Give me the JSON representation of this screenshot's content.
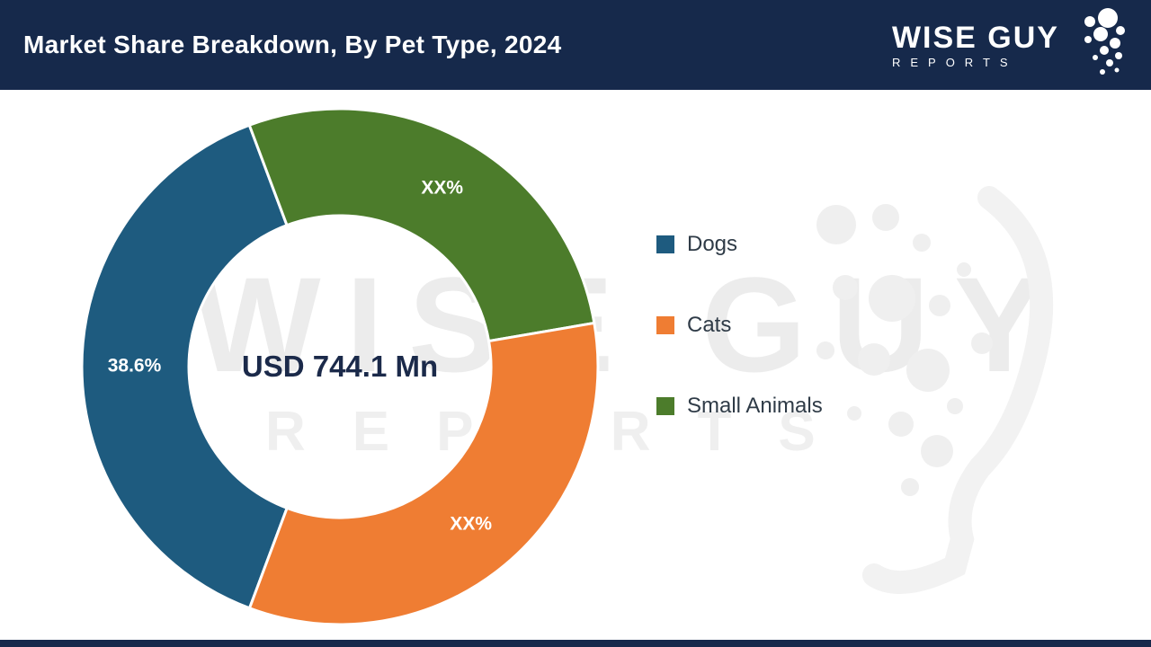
{
  "header": {
    "title": "Market Share Breakdown, By Pet Type, 2024",
    "logo": {
      "line1": "WISE GUY",
      "line2": "REPORTS"
    }
  },
  "watermark": {
    "line1": "WISE GUY",
    "line2": "REPORTS"
  },
  "colors": {
    "header_bg": "#16294B",
    "footer_bg": "#16294B",
    "dogs": "#1E5B7F",
    "cats": "#EF7D33",
    "small_animals": "#4C7C2B",
    "center_text": "#1B2A4A"
  },
  "chart_data": {
    "type": "pie",
    "subtype": "donut",
    "title": "Market Share Breakdown, By Pet Type, 2024",
    "center_label": "USD 744.1 Mn",
    "rotation_deg": 200.5,
    "outer_radius": 287,
    "inner_radius": 168,
    "segments": [
      {
        "name": "Dogs",
        "label": "38.6%",
        "value_pct": 38.6,
        "color": "#1E5B7F"
      },
      {
        "name": "Small Animals",
        "label": "XX%",
        "value_pct": 28.0,
        "color": "#4C7C2B"
      },
      {
        "name": "Cats",
        "label": "XX%",
        "value_pct": 33.4,
        "color": "#EF7D33"
      }
    ],
    "legend": [
      {
        "label": "Dogs",
        "color": "#1E5B7F"
      },
      {
        "label": "Cats",
        "color": "#EF7D33"
      },
      {
        "label": "Small Animals",
        "color": "#4C7C2B"
      }
    ],
    "legend_position": "right"
  }
}
